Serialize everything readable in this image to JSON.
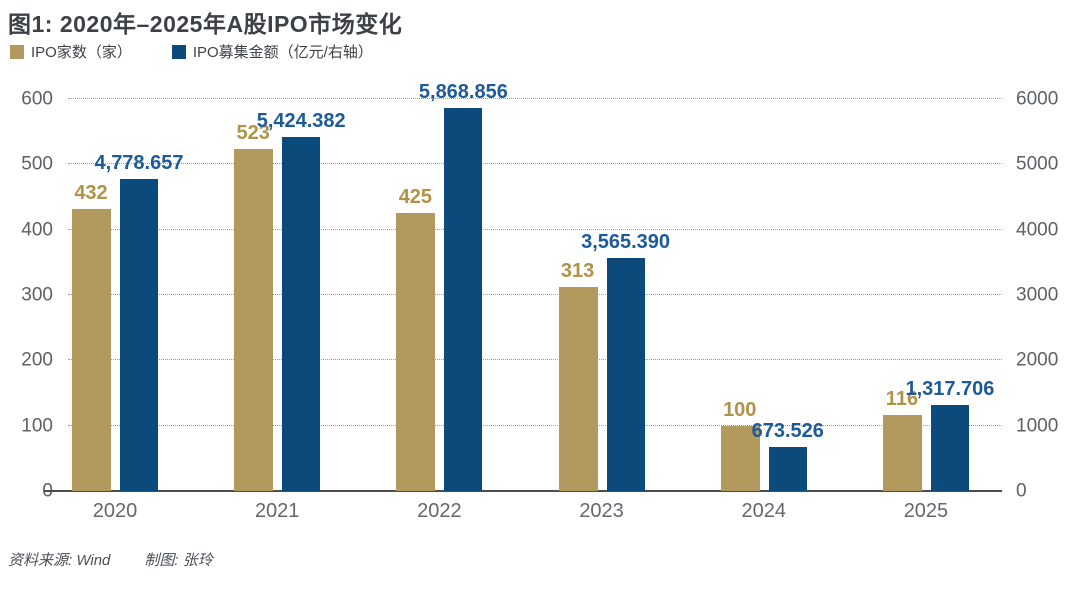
{
  "title": "图1: 2020年–2025年A股IPO市场变化",
  "legend": [
    {
      "label": "IPO家数（家）",
      "color": "#b29a5e"
    },
    {
      "label": "IPO募集金额（亿元/右轴）",
      "color": "#0d4a7c"
    }
  ],
  "chart_data": {
    "type": "bar",
    "title": "图1: 2020年–2025年A股IPO市场变化",
    "categories": [
      "2020",
      "2021",
      "2022",
      "2023",
      "2024",
      "2025"
    ],
    "series": [
      {
        "name": "IPO家数（家）",
        "axis": "left",
        "color": "#b29a5e",
        "label_color": "#b09248",
        "values": [
          432,
          523,
          425,
          313,
          100,
          116
        ],
        "labels": [
          "432",
          "523",
          "425",
          "313",
          "100",
          "116"
        ]
      },
      {
        "name": "IPO募集金额（亿元/右轴）",
        "axis": "right",
        "color": "#0d4a7c",
        "label_color": "#1d5a99",
        "values": [
          4778.657,
          5424.382,
          5868.856,
          3565.39,
          673.526,
          1317.706
        ],
        "labels": [
          "4,778.657",
          "5,424.382",
          "5,868.856",
          "3,565.390",
          "673.526",
          "1,317.706"
        ]
      }
    ],
    "left_axis": {
      "ticks": [
        600,
        500,
        400,
        300,
        200,
        100,
        0
      ],
      "max": 600
    },
    "right_axis": {
      "ticks": [
        6000,
        5000,
        4000,
        3000,
        2000,
        1000,
        0
      ],
      "max": 6000
    },
    "grid": "dotted-horizontal",
    "legend_position": "top-left"
  },
  "footer": {
    "source": "资料来源: Wind",
    "credit": "制图: 张玲"
  }
}
